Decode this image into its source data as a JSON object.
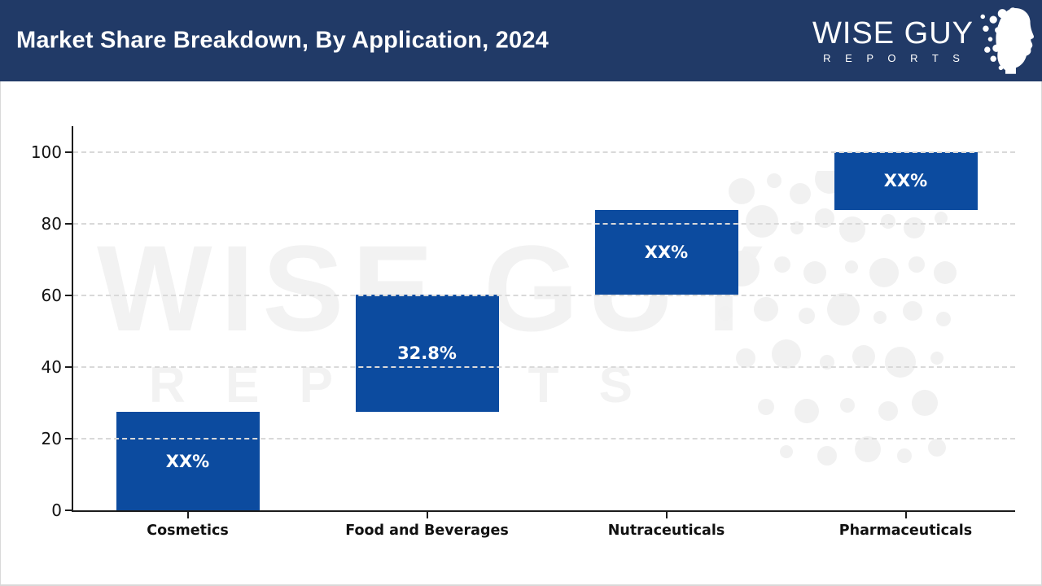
{
  "header": {
    "title": "Market Share Breakdown, By Application, 2024",
    "bg_color": "#213a67",
    "logo": {
      "line1": "WISE GUY",
      "line2": "R E P O R T S"
    }
  },
  "watermark": {
    "line1": "WISE GUY",
    "line2": "R E P O R T S",
    "color": "#f2f2f2"
  },
  "chart_data": {
    "type": "bar",
    "subtype": "floating-waterfall",
    "title": "Market Share Breakdown, By Application, 2024",
    "categories": [
      "Cosmetics",
      "Food and Beverages",
      "Nutraceuticals",
      "Pharmaceuticals"
    ],
    "segments": [
      {
        "category": "Cosmetics",
        "start": 0,
        "end": 27.4,
        "label": "XX%"
      },
      {
        "category": "Food and Beverages",
        "start": 27.4,
        "end": 60.2,
        "label": "32.8%",
        "value": 32.8
      },
      {
        "category": "Nutraceuticals",
        "start": 60.2,
        "end": 83.8,
        "label": "XX%"
      },
      {
        "category": "Pharmaceuticals",
        "start": 83.8,
        "end": 100,
        "label": "XX%"
      }
    ],
    "yticks": [
      0,
      20,
      40,
      60,
      80,
      100
    ],
    "ylim": [
      0,
      105
    ],
    "xlabel": "",
    "ylabel": "",
    "grid": true,
    "grid_style": "dashed",
    "legend": false,
    "bar_color": "#0c4b9f",
    "bar_label_color": "#ffffff",
    "axis_color": "#1c1c1c",
    "grid_color": "#d9d9d9"
  }
}
